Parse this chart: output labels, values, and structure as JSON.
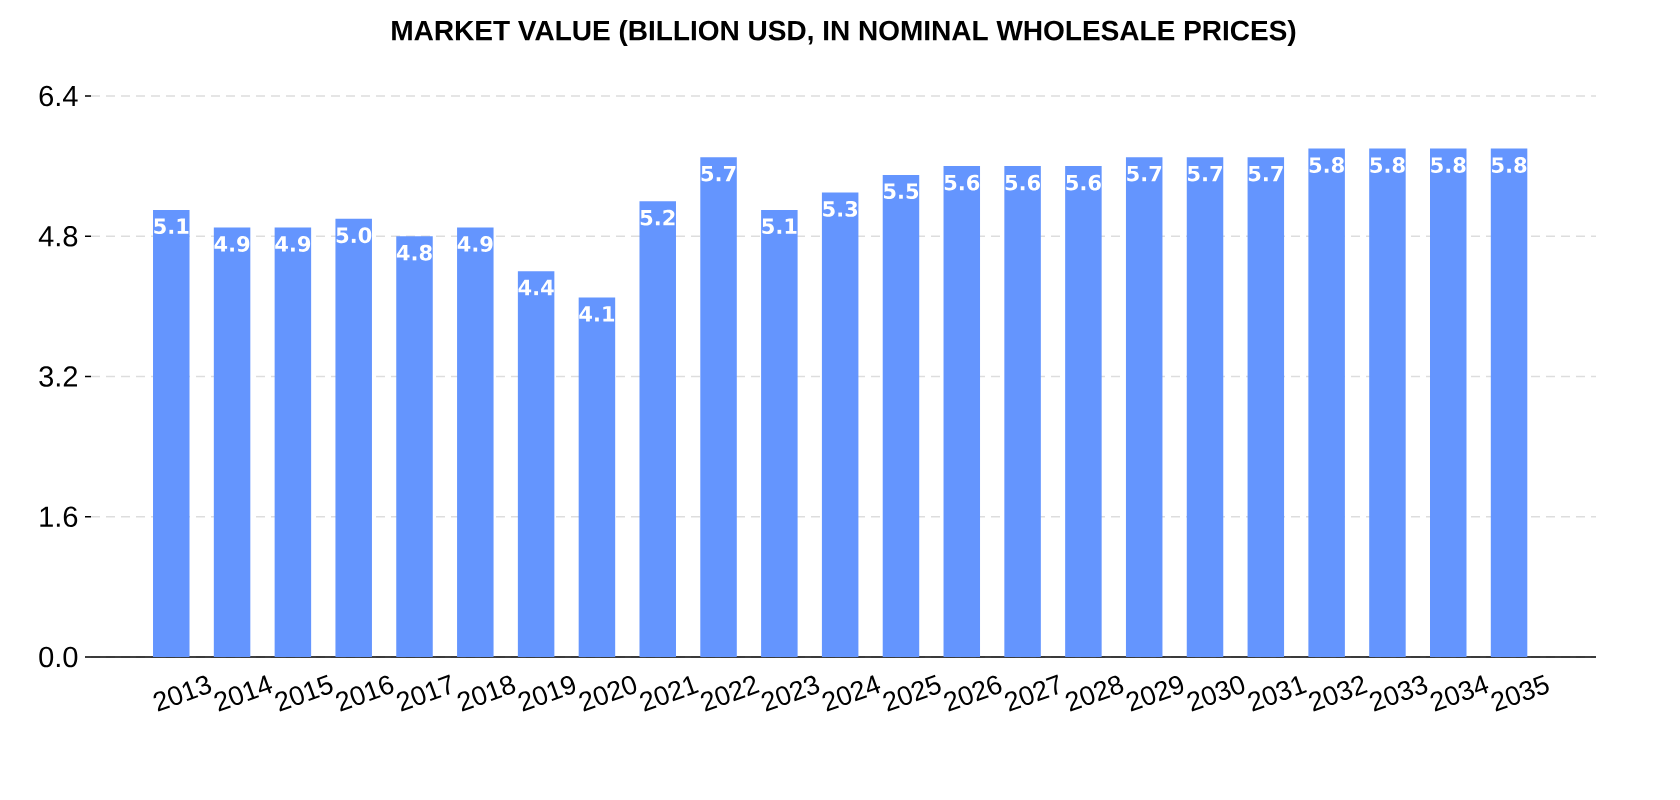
{
  "chart_data": {
    "type": "bar",
    "title": "MARKET VALUE (BILLION USD, IN NOMINAL WHOLESALE PRICES)",
    "categories": [
      "2013",
      "2014",
      "2015",
      "2016",
      "2017",
      "2018",
      "2019",
      "2020",
      "2021",
      "2022",
      "2023",
      "2024",
      "2025",
      "2026",
      "2027",
      "2028",
      "2029",
      "2030",
      "2031",
      "2032",
      "2033",
      "2034",
      "2035"
    ],
    "values": [
      5.1,
      4.9,
      4.9,
      5.0,
      4.8,
      4.9,
      4.4,
      4.1,
      5.2,
      5.7,
      5.1,
      5.3,
      5.5,
      5.6,
      5.6,
      5.6,
      5.7,
      5.7,
      5.7,
      5.8,
      5.8,
      5.8,
      5.8
    ],
    "value_labels": [
      "5.1",
      "4.9",
      "4.9",
      "5.0",
      "4.8",
      "4.9",
      "4.4",
      "4.1",
      "5.2",
      "5.7",
      "5.1",
      "5.3",
      "5.5",
      "5.6",
      "5.6",
      "5.6",
      "5.7",
      "5.7",
      "5.7",
      "5.8",
      "5.8",
      "5.8",
      "5.8"
    ],
    "color": "#6495fe",
    "ylim": [
      0,
      6.4
    ],
    "yticks": [
      {
        "value": 0,
        "label": "0.0"
      },
      1.6,
      3.2,
      4.8,
      6.4
    ],
    "grid": "y"
  }
}
